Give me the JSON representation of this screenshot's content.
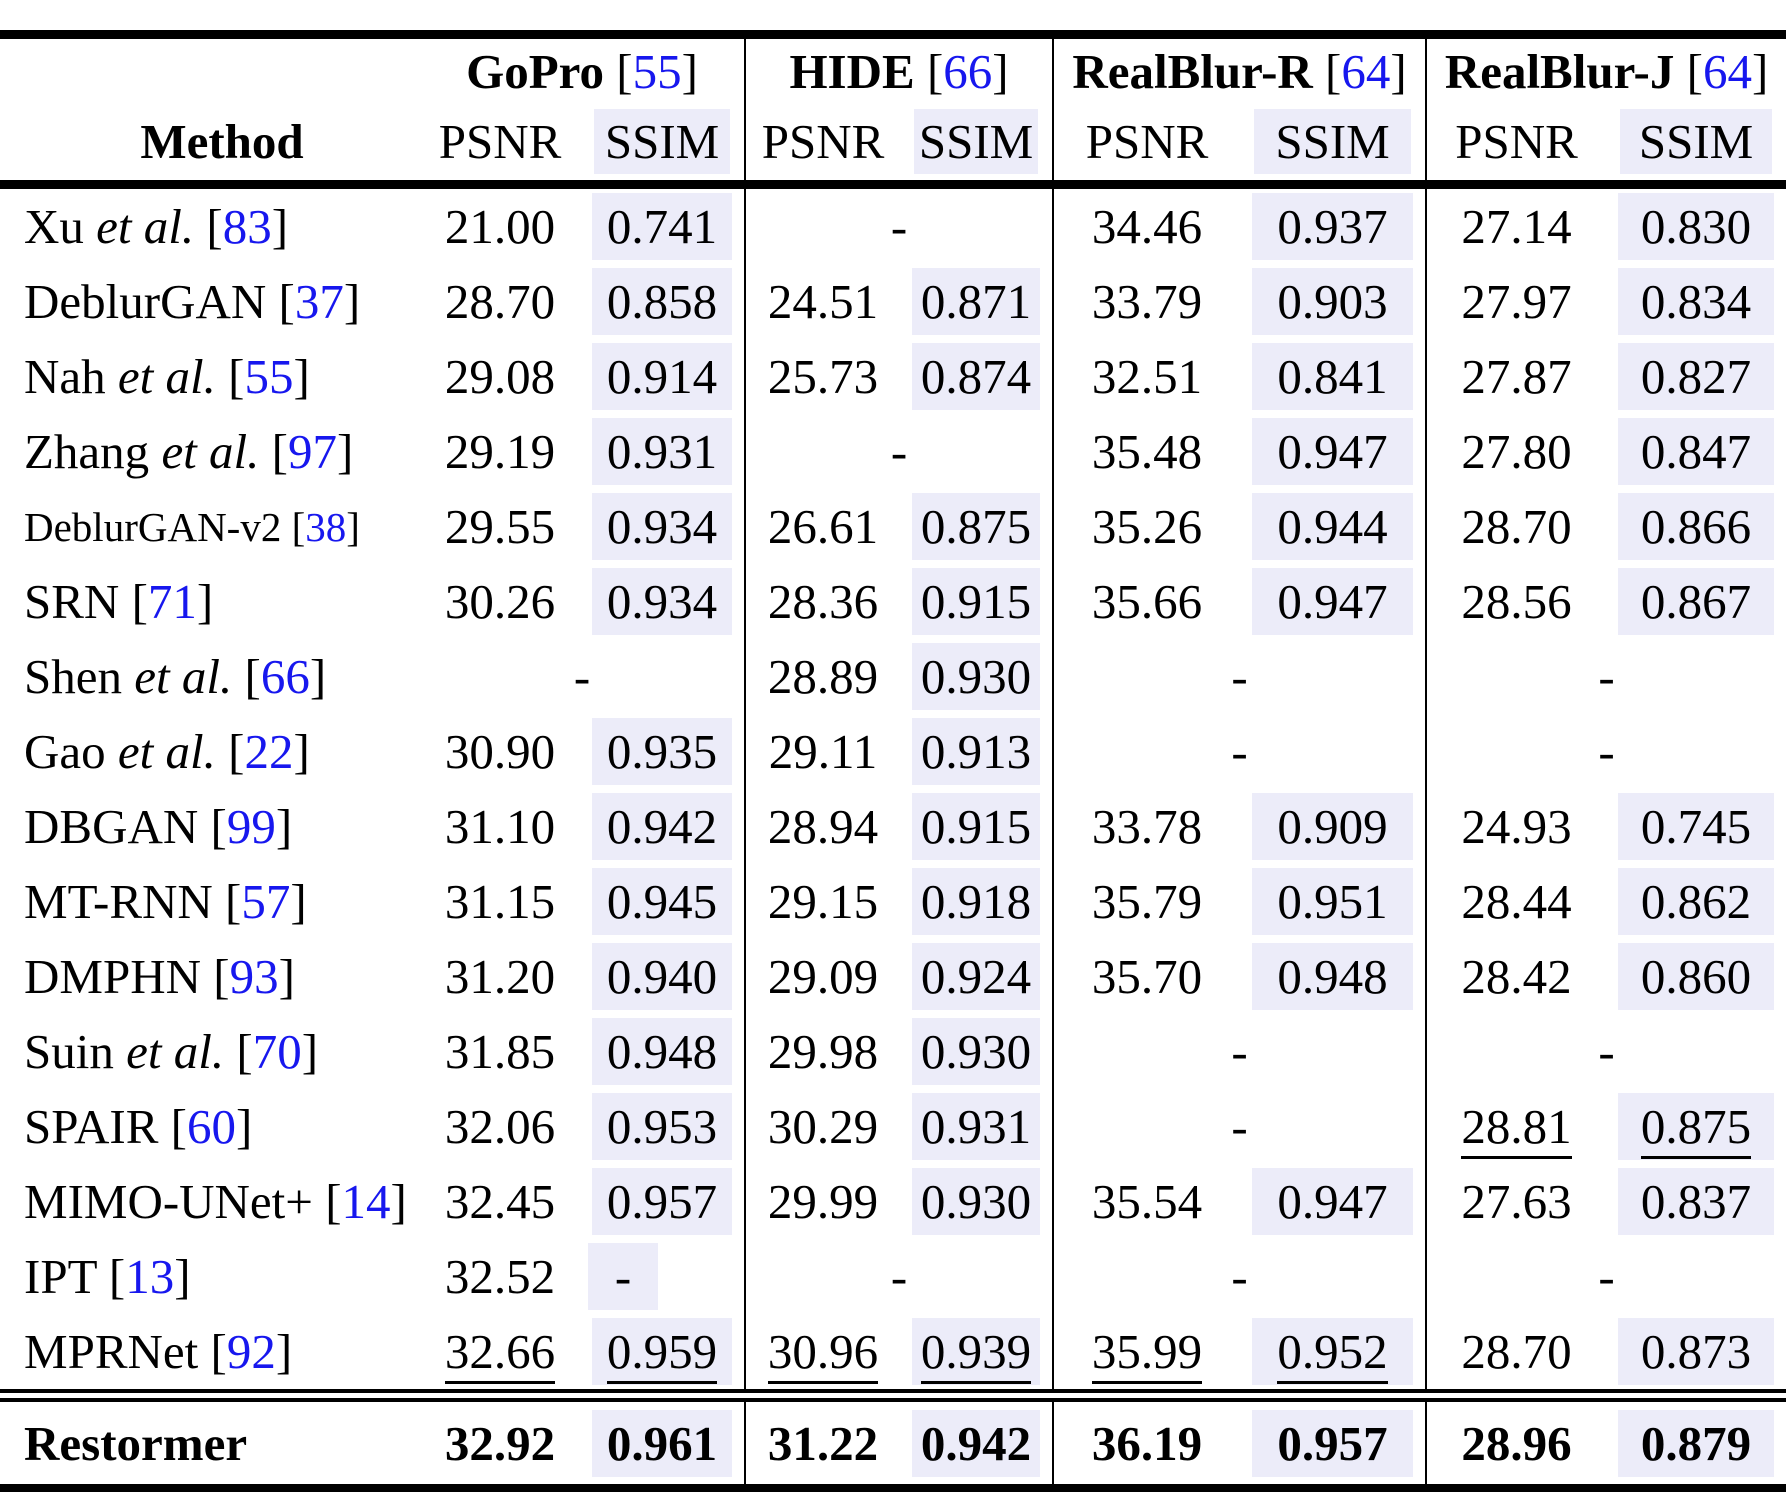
{
  "colors": {
    "ssim_highlight": "#ececf9",
    "citation_blue": "#1717ee"
  },
  "table": {
    "method_header": "Method",
    "lb": "[",
    "rb": "]",
    "metrics": {
      "psnr": "PSNR",
      "ssim": "SSIM"
    },
    "groups": [
      {
        "name": "GoPro ",
        "cite": "55"
      },
      {
        "name": "HIDE ",
        "cite": "66"
      },
      {
        "name": "RealBlur-R ",
        "cite": "64"
      },
      {
        "name": "RealBlur-J ",
        "cite": "64"
      }
    ],
    "rows": [
      {
        "name": "Xu ",
        "etal": "et al. ",
        "cl": "[",
        "cite": "83",
        "cr": "]",
        "g1": {
          "psnr": "21.00",
          "ssim": "0.741"
        },
        "g2": {
          "dash": "-"
        },
        "g3": {
          "psnr": "34.46",
          "ssim": "0.937"
        },
        "g4": {
          "psnr": "27.14",
          "ssim": "0.830"
        }
      },
      {
        "name": "DeblurGAN ",
        "etal": "",
        "cl": "[",
        "cite": "37",
        "cr": "]",
        "g1": {
          "psnr": "28.70",
          "ssim": "0.858"
        },
        "g2": {
          "psnr": "24.51",
          "ssim": "0.871"
        },
        "g3": {
          "psnr": "33.79",
          "ssim": "0.903"
        },
        "g4": {
          "psnr": "27.97",
          "ssim": "0.834"
        }
      },
      {
        "name": "Nah ",
        "etal": "et al. ",
        "cl": "[",
        "cite": "55",
        "cr": "]",
        "g1": {
          "psnr": "29.08",
          "ssim": "0.914"
        },
        "g2": {
          "psnr": "25.73",
          "ssim": "0.874"
        },
        "g3": {
          "psnr": "32.51",
          "ssim": "0.841"
        },
        "g4": {
          "psnr": "27.87",
          "ssim": "0.827"
        }
      },
      {
        "name": "Zhang ",
        "etal": "et al. ",
        "cl": "[",
        "cite": "97",
        "cr": "]",
        "g1": {
          "psnr": "29.19",
          "ssim": "0.931"
        },
        "g2": {
          "dash": "-"
        },
        "g3": {
          "psnr": "35.48",
          "ssim": "0.947"
        },
        "g4": {
          "psnr": "27.80",
          "ssim": "0.847"
        }
      },
      {
        "name": "DeblurGAN-v2 ",
        "etal": "",
        "cl": "[",
        "cite": "38",
        "cr": "]",
        "g1": {
          "psnr": "29.55",
          "ssim": "0.934"
        },
        "g2": {
          "psnr": "26.61",
          "ssim": "0.875"
        },
        "g3": {
          "psnr": "35.26",
          "ssim": "0.944"
        },
        "g4": {
          "psnr": "28.70",
          "ssim": "0.866"
        }
      },
      {
        "name": "SRN ",
        "etal": "",
        "cl": "[",
        "cite": "71",
        "cr": "]",
        "g1": {
          "psnr": "30.26",
          "ssim": "0.934"
        },
        "g2": {
          "psnr": "28.36",
          "ssim": "0.915"
        },
        "g3": {
          "psnr": "35.66",
          "ssim": "0.947"
        },
        "g4": {
          "psnr": "28.56",
          "ssim": "0.867"
        }
      },
      {
        "name": "Shen ",
        "etal": "et al. ",
        "cl": "[",
        "cite": "66",
        "cr": "]",
        "g1": {
          "dash": "-"
        },
        "g2": {
          "psnr": "28.89",
          "ssim": "0.930"
        },
        "g3": {
          "dash": "-"
        },
        "g4": {
          "dash": "-"
        }
      },
      {
        "name": "Gao ",
        "etal": "et al. ",
        "cl": "[",
        "cite": "22",
        "cr": "]",
        "g1": {
          "psnr": "30.90",
          "ssim": "0.935"
        },
        "g2": {
          "psnr": "29.11",
          "ssim": "0.913"
        },
        "g3": {
          "dash": "-"
        },
        "g4": {
          "dash": "-"
        }
      },
      {
        "name": "DBGAN ",
        "etal": "",
        "cl": "[",
        "cite": "99",
        "cr": "]",
        "g1": {
          "psnr": "31.10",
          "ssim": "0.942"
        },
        "g2": {
          "psnr": "28.94",
          "ssim": "0.915"
        },
        "g3": {
          "psnr": "33.78",
          "ssim": "0.909"
        },
        "g4": {
          "psnr": "24.93",
          "ssim": "0.745"
        }
      },
      {
        "name": "MT-RNN ",
        "etal": "",
        "cl": "[",
        "cite": "57",
        "cr": "]",
        "g1": {
          "psnr": "31.15",
          "ssim": "0.945"
        },
        "g2": {
          "psnr": "29.15",
          "ssim": "0.918"
        },
        "g3": {
          "psnr": "35.79",
          "ssim": "0.951"
        },
        "g4": {
          "psnr": "28.44",
          "ssim": "0.862"
        }
      },
      {
        "name": "DMPHN ",
        "etal": "",
        "cl": "[",
        "cite": "93",
        "cr": "]",
        "g1": {
          "psnr": "31.20",
          "ssim": "0.940"
        },
        "g2": {
          "psnr": "29.09",
          "ssim": "0.924"
        },
        "g3": {
          "psnr": "35.70",
          "ssim": "0.948"
        },
        "g4": {
          "psnr": "28.42",
          "ssim": "0.860"
        }
      },
      {
        "name": "Suin ",
        "etal": "et al. ",
        "cl": "[",
        "cite": "70",
        "cr": "]",
        "g1": {
          "psnr": "31.85",
          "ssim": "0.948"
        },
        "g2": {
          "psnr": "29.98",
          "ssim": "0.930"
        },
        "g3": {
          "dash": "-"
        },
        "g4": {
          "dash": "-"
        }
      },
      {
        "name": "SPAIR ",
        "etal": "",
        "cl": "[",
        "cite": "60",
        "cr": "]",
        "g1": {
          "psnr": "32.06",
          "ssim": "0.953"
        },
        "g2": {
          "psnr": "30.29",
          "ssim": "0.931"
        },
        "g3": {
          "dash": "-"
        },
        "g4": {
          "psnr": "28.81",
          "ssim": "0.875"
        }
      },
      {
        "name": "MIMO-UNet+ ",
        "etal": "",
        "cl": "[",
        "cite": "14",
        "cr": "]",
        "g1": {
          "psnr": "32.45",
          "ssim": "0.957"
        },
        "g2": {
          "psnr": "29.99",
          "ssim": "0.930"
        },
        "g3": {
          "psnr": "35.54",
          "ssim": "0.947"
        },
        "g4": {
          "psnr": "27.63",
          "ssim": "0.837"
        }
      },
      {
        "name": "IPT ",
        "etal": "",
        "cl": "[",
        "cite": "13",
        "cr": "]",
        "g1": {
          "psnr": "32.52",
          "ssim": "-"
        },
        "g2": {
          "dash": "-"
        },
        "g3": {
          "dash": "-"
        },
        "g4": {
          "dash": "-"
        }
      },
      {
        "name": "MPRNet ",
        "etal": "",
        "cl": "[",
        "cite": "92",
        "cr": "]",
        "g1": {
          "psnr": "32.66",
          "ssim": "0.959"
        },
        "g2": {
          "psnr": "30.96",
          "ssim": "0.939"
        },
        "g3": {
          "psnr": "35.99",
          "ssim": "0.952"
        },
        "g4": {
          "psnr": "28.70",
          "ssim": "0.873"
        }
      },
      {
        "name": "Restormer",
        "etal": "",
        "cl": "",
        "cite": "",
        "cr": "",
        "g1": {
          "psnr": "32.92",
          "ssim": "0.961"
        },
        "g2": {
          "psnr": "31.22",
          "ssim": "0.942"
        },
        "g3": {
          "psnr": "36.19",
          "ssim": "0.957"
        },
        "g4": {
          "psnr": "28.96",
          "ssim": "0.879"
        }
      }
    ]
  }
}
